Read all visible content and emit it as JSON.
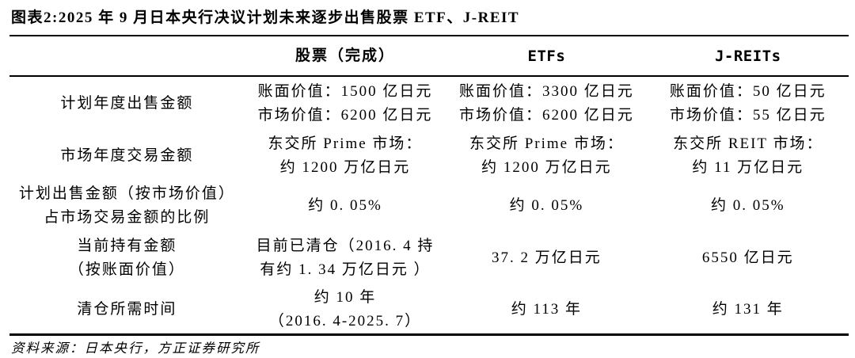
{
  "title": "图表2:2025 年 9 月日本央行决议计划未来逐步出售股票 ETF、J-REIT",
  "table": {
    "headers": {
      "label_col": "",
      "stock": "股票（完成）",
      "etf": "ETFs",
      "jreit": "J-REITs"
    },
    "rows": [
      {
        "label": [
          "计划年度出售金额"
        ],
        "cells": [
          [
            "账面价值：1500 亿日元",
            "市场价值：6200 亿日元"
          ],
          [
            "账面价值：3300 亿日元",
            "市场价值：6200 亿日元"
          ],
          [
            "账面价值：50 亿日元",
            "市场价值：55 亿日元"
          ]
        ]
      },
      {
        "label": [
          "市场年度交易金额"
        ],
        "cells": [
          [
            "东交所 Prime 市场：",
            "约 1200 万亿日元"
          ],
          [
            "东交所 Prime 市场：",
            "约 1200 万亿日元"
          ],
          [
            "东交所 REIT 市场：",
            "约 11 万亿日元"
          ]
        ]
      },
      {
        "label": [
          "计划出售金额（按市场价值）",
          "占市场交易金额的比例"
        ],
        "cells": [
          [
            "约 0. 05%"
          ],
          [
            "约 0. 05%"
          ],
          [
            "约 0. 05%"
          ]
        ]
      },
      {
        "label": [
          "当前持有金额",
          "（按账面价值）"
        ],
        "cells": [
          [
            "目前已清仓（2016. 4 持",
            "有约 1. 34 万亿日元 ）"
          ],
          [
            "37. 2 万亿日元"
          ],
          [
            "6550 亿日元"
          ]
        ]
      },
      {
        "label": [
          "清仓所需时间"
        ],
        "cells": [
          [
            "约 10 年",
            "（2016. 4-2025. 7）"
          ],
          [
            "约 113 年"
          ],
          [
            "约 131 年"
          ]
        ]
      }
    ]
  },
  "source": "资料来源：日本央行，方正证券研究所",
  "colors": {
    "text": "#000000",
    "background": "#ffffff",
    "rule": "#000000"
  }
}
